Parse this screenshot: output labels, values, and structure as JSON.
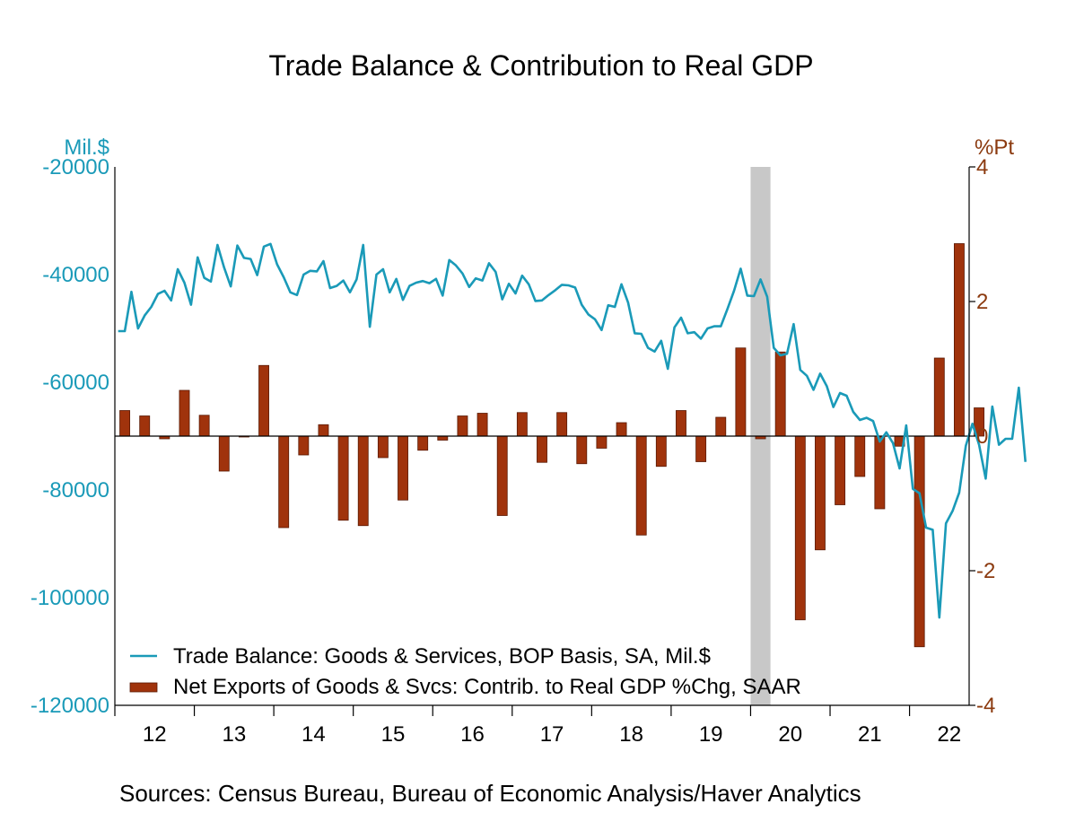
{
  "chart_data": {
    "type": "bar+line",
    "title": "Trade Balance & Contribution to Real GDP",
    "source": "Sources:   Census Bureau, Bureau of Economic Analysis/Haver Analytics",
    "left_axis": {
      "unit": "Mil.$",
      "range": [
        -120000,
        -20000
      ],
      "ticks": [
        -20000,
        -40000,
        -60000,
        -80000,
        -100000,
        -120000
      ],
      "tick_labels": [
        "-20000",
        "-40000",
        "-60000",
        "-80000",
        "-100000",
        "-120000"
      ]
    },
    "right_axis": {
      "unit": "%Pt",
      "range": [
        -4,
        4
      ],
      "ticks": [
        4,
        2,
        0,
        -2,
        -4
      ],
      "tick_labels": [
        "4",
        "2",
        "0",
        "-2",
        "-4"
      ]
    },
    "x_axis": {
      "labels": [
        "12",
        "13",
        "14",
        "15",
        "16",
        "17",
        "18",
        "19",
        "20",
        "21",
        "22"
      ],
      "start_year": 2012,
      "end_year": 2022.75
    },
    "recession_band": {
      "start": 2020.0,
      "end": 2020.25
    },
    "legend": {
      "line_label": "Trade Balance: Goods & Services, BOP Basis, SA, Mil.$",
      "bar_label": "Net Exports of Goods & Svcs: Contrib. to Real GDP %Chg, SAAR"
    },
    "colors": {
      "line": "#1a9ab8",
      "bar": "#a0330c",
      "bar_edge": "#5a1a04",
      "recession": "#c8c8c8",
      "right_axis": "#8b3a0f"
    },
    "series": [
      {
        "name": "Trade Balance: Goods & Services, BOP Basis, SA, Mil.$",
        "kind": "line",
        "axis": "left",
        "start": "2012-01",
        "frequency": "monthly",
        "values": [
          -50500,
          -50500,
          -43200,
          -50000,
          -47600,
          -46000,
          -43600,
          -43000,
          -44800,
          -39000,
          -41500,
          -45600,
          -36800,
          -40600,
          -41300,
          -34500,
          -38700,
          -42200,
          -34600,
          -36900,
          -37100,
          -40100,
          -34800,
          -34300,
          -38100,
          -40500,
          -43300,
          -43800,
          -40000,
          -39300,
          -39400,
          -37500,
          -42500,
          -42100,
          -41100,
          -43300,
          -40900,
          -34500,
          -49700,
          -40000,
          -39000,
          -43300,
          -40800,
          -44700,
          -42100,
          -41500,
          -41200,
          -41600,
          -40800,
          -43900,
          -37300,
          -38300,
          -39800,
          -42300,
          -40700,
          -41100,
          -37900,
          -39500,
          -44600,
          -41700,
          -43500,
          -40200,
          -41800,
          -44900,
          -44800,
          -43800,
          -42900,
          -41900,
          -42000,
          -42400,
          -45600,
          -47400,
          -48300,
          -50300,
          -45700,
          -46000,
          -41800,
          -45200,
          -50900,
          -51000,
          -53600,
          -54300,
          -52300,
          -57500,
          -49800,
          -48000,
          -50900,
          -50700,
          -51900,
          -50000,
          -49600,
          -49600,
          -46400,
          -43000,
          -38900,
          -43900,
          -44000,
          -40900,
          -44100,
          -53600,
          -55000,
          -54700,
          -49200,
          -57700,
          -58800,
          -61400,
          -58400,
          -60700,
          -64600,
          -62000,
          -62500,
          -65500,
          -67000,
          -66600,
          -67200,
          -71000,
          -69300,
          -71300,
          -76000,
          -68000,
          -79800,
          -80600,
          -87000,
          -87400,
          -103700,
          -86200,
          -83900,
          -80500,
          -71800,
          -67700,
          -71600,
          -77900,
          -64500,
          -71600,
          -70500,
          -70500,
          -61000,
          -74800
        ]
      },
      {
        "name": "Net Exports of Goods & Svcs: Contrib. to Real GDP %Chg, SAAR",
        "kind": "bar",
        "axis": "right",
        "start": "2012-Q1",
        "frequency": "quarterly",
        "values": [
          0.38,
          0.3,
          -0.04,
          0.68,
          0.31,
          -0.52,
          0.0,
          1.05,
          -1.36,
          -0.28,
          0.17,
          -1.25,
          -1.33,
          -0.32,
          -0.95,
          -0.21,
          -0.06,
          0.3,
          0.34,
          -1.18,
          0.35,
          -0.39,
          0.35,
          -0.41,
          -0.18,
          0.2,
          -1.47,
          -0.45,
          0.38,
          -0.38,
          0.28,
          1.31,
          -0.04,
          1.25,
          -2.73,
          -1.69,
          -1.02,
          -0.6,
          -1.08,
          -0.15,
          -3.13,
          1.16,
          2.86,
          0.42
        ]
      }
    ]
  }
}
